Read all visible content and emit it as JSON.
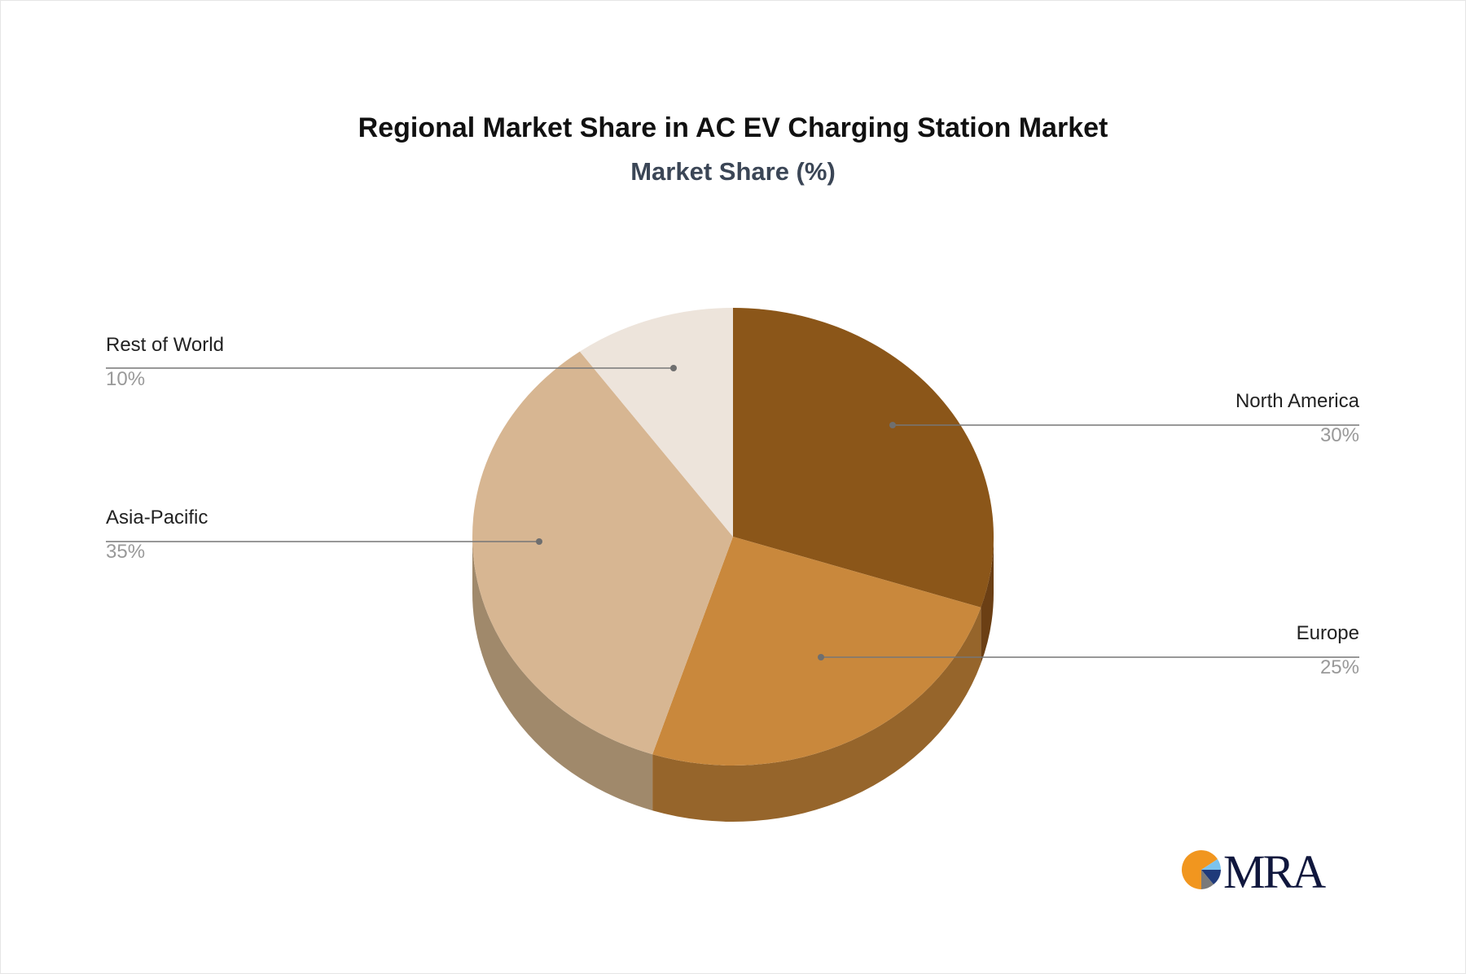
{
  "chart_data": {
    "type": "pie",
    "style": "3d",
    "title": "Regional Market Share in AC EV Charging Station Market",
    "subtitle": "Market Share (%)",
    "slices": [
      {
        "label": "North America",
        "value": 30,
        "display": "30%",
        "color": "#8b5619",
        "side_color": "#6b3f14"
      },
      {
        "label": "Europe",
        "value": 25,
        "display": "25%",
        "color": "#c9883c",
        "side_color": "#96652b"
      },
      {
        "label": "Asia-Pacific",
        "value": 35,
        "display": "35%",
        "color": "#d7b692",
        "side_color": "#a0896b"
      },
      {
        "label": "Rest of World",
        "value": 10,
        "display": "10%",
        "color": "#ede4db",
        "side_color": "#bdb2a6"
      }
    ],
    "legend": "none"
  },
  "logo": {
    "text": "MRA"
  }
}
